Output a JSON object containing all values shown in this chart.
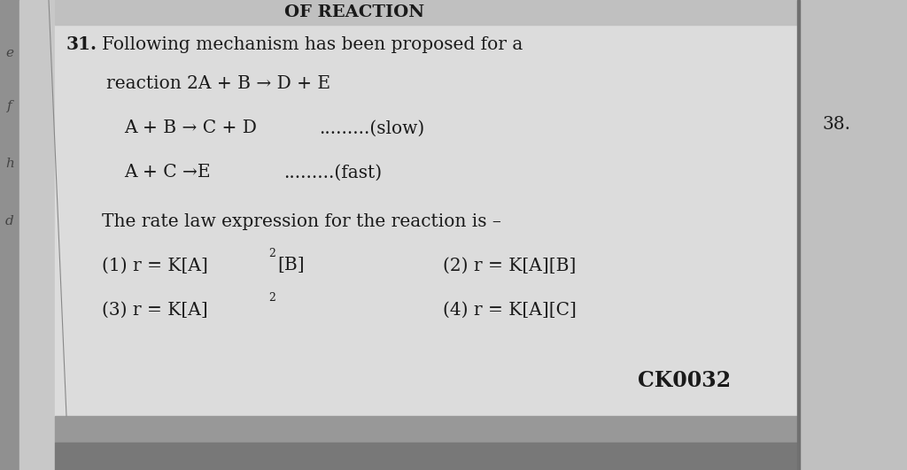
{
  "bg_color": "#b8b8b8",
  "left_strip_color": "#909090",
  "main_bg": "#dcdcdc",
  "right_panel_bg": "#c8c8c8",
  "bottom_bar_color": "#a0a0a0",
  "top_bar_color": "#c8c8c8",
  "text_color": "#1a1a1a",
  "top_bar_text": "OF REACTION",
  "question_number": "31.",
  "line1": "Following mechanism has been proposed for a",
  "line2": "reaction 2A + B → D + E",
  "line3a": "A + B → C + D",
  "line3b": ".........(slow)",
  "line4a": "A + C →E",
  "line4b": ".........(fast)",
  "line5": "The rate law expression for the reaction is –",
  "opt1_pre": "(1) r = K[A]",
  "opt1_sup": "2",
  "opt1_post": "[B]",
  "opt2": "(2) r = K[A][B]",
  "opt3_pre": "(3) r = K[A]",
  "opt3_sup": "2",
  "opt4": "(4) r = K[A][C]",
  "code": "CK0032",
  "right_number": "38.",
  "left_letters": [
    "e",
    "f",
    "h",
    "d"
  ]
}
